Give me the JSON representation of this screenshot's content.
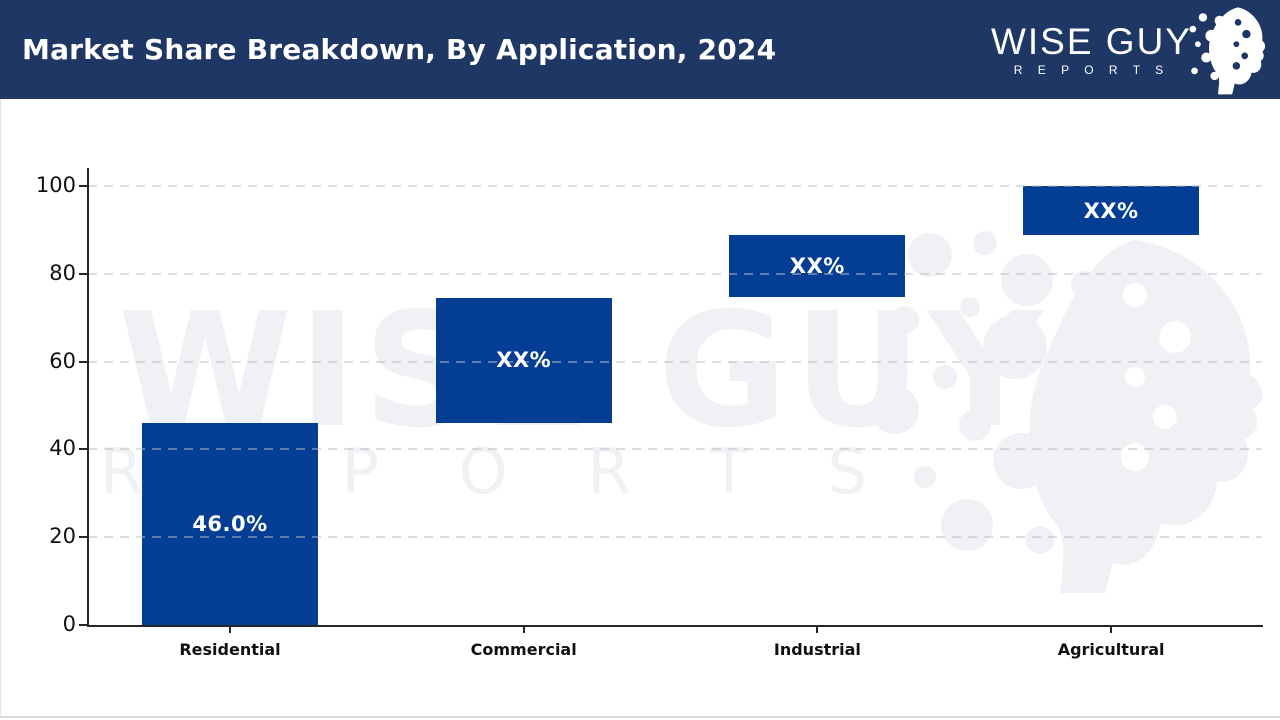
{
  "header": {
    "title": "Market Share Breakdown, By Application, 2024",
    "background_color": "#1f3765",
    "text_color": "#ffffff"
  },
  "logo": {
    "wordmark": "WISE GUY",
    "subtext": "R E P O R T S"
  },
  "watermark": {
    "wordmark": "WISE GUY",
    "subtext": "R E P O R T S"
  },
  "chart_data": {
    "type": "bar",
    "subtype": "waterfall",
    "title": "Market Share Breakdown, By Application, 2024",
    "categories": [
      "Residential",
      "Commercial",
      "Industrial",
      "Agricultural"
    ],
    "segments": [
      {
        "category": "Residential",
        "start": 0,
        "end": 46,
        "label": "46.0%"
      },
      {
        "category": "Commercial",
        "start": 46,
        "end": 74.6,
        "label": "XX%"
      },
      {
        "category": "Industrial",
        "start": 74.6,
        "end": 88.8,
        "label": "XX%"
      },
      {
        "category": "Agricultural",
        "start": 88.8,
        "end": 100,
        "label": "XX%"
      }
    ],
    "yticks": [
      0,
      20,
      40,
      60,
      80,
      100
    ],
    "ylim": [
      0,
      104
    ],
    "xlabel": "",
    "ylabel": "",
    "grid": "horizontal-dashed-over-bars",
    "legend": "none",
    "bar_color": "#043e94",
    "bar_label_color": "#ffffff",
    "axis_color": "#262626",
    "gridline_color": "#c8c8c8"
  }
}
